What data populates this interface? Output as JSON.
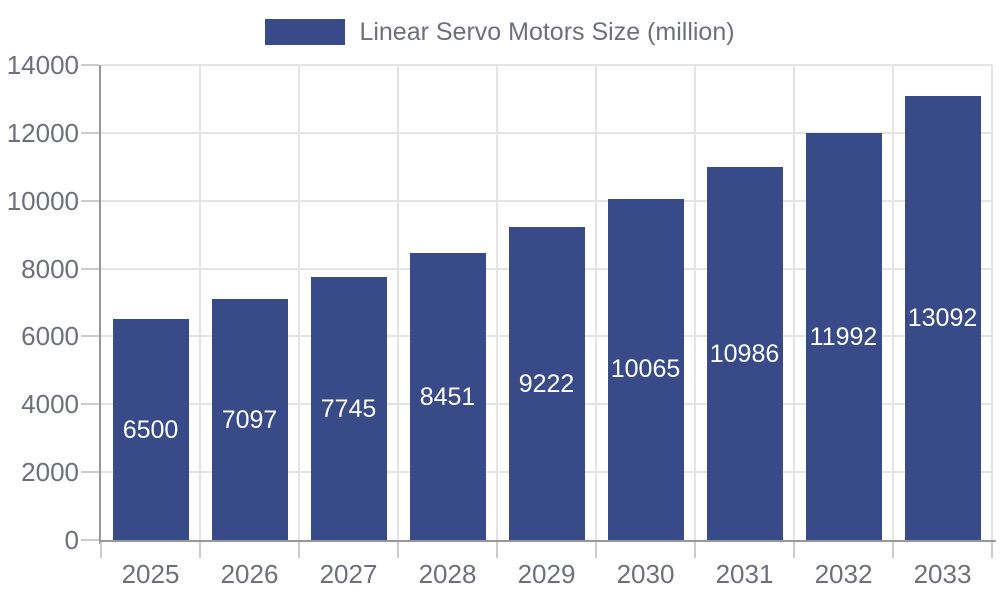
{
  "legend": {
    "label": "Linear Servo Motors Size (million)"
  },
  "chart_data": {
    "type": "bar",
    "title": "Linear Servo Motors Size (million)",
    "series_name": "Linear Servo Motors Size (million)",
    "categories": [
      "2025",
      "2026",
      "2027",
      "2028",
      "2029",
      "2030",
      "2031",
      "2032",
      "2033"
    ],
    "values": [
      6500,
      7097,
      7745,
      8451,
      9222,
      10065,
      10986,
      11992,
      13092
    ],
    "xlabel": "",
    "ylabel": "",
    "ylim": [
      0,
      14000
    ],
    "ytick_step": 2000,
    "ytick_labels": [
      "0",
      "2000",
      "4000",
      "6000",
      "8000",
      "10000",
      "12000",
      "14000"
    ],
    "grid": true,
    "legend_position": "top-center",
    "value_labels": "inside-center",
    "colors": {
      "bar": "#384A87",
      "value_label": "#FFFFFF",
      "axis_text": "#6E7079",
      "grid_line": "#E4E4E4",
      "axis_line": "#979797",
      "tick": "#C9CDD1",
      "background": "#FFFFFF"
    }
  }
}
